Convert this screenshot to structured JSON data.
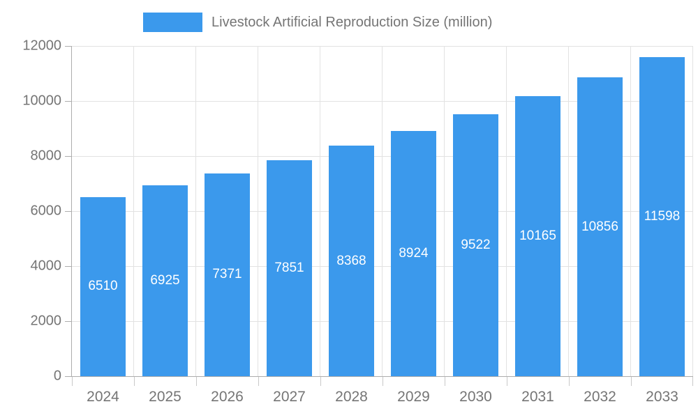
{
  "chart_data": {
    "type": "bar",
    "title": "Livestock Artificial Reproduction Size (million)",
    "legend": {
      "label": "Livestock Artificial Reproduction Size (million)",
      "position": "top"
    },
    "categories": [
      "2024",
      "2025",
      "2026",
      "2027",
      "2028",
      "2029",
      "2030",
      "2031",
      "2032",
      "2033"
    ],
    "values": [
      6510,
      6925,
      7371,
      7851,
      8368,
      8924,
      9522,
      10165,
      10856,
      11598
    ],
    "data_labels_visible": true,
    "data_label_position": "inside-center",
    "xlabel": "",
    "ylabel": "",
    "ylim": [
      0,
      12000
    ],
    "yticks": [
      0,
      2000,
      4000,
      6000,
      8000,
      10000,
      12000
    ],
    "grid": true,
    "colors": {
      "bar": "#3b99ec",
      "bar_label_text": "#ffffff",
      "axis_text": "#757575",
      "gridline": "#e2e2e2",
      "axis_line": "#adadad",
      "x_tick": "#c9c9c9",
      "y_tick": "#adadad",
      "background": "#ffffff"
    }
  }
}
